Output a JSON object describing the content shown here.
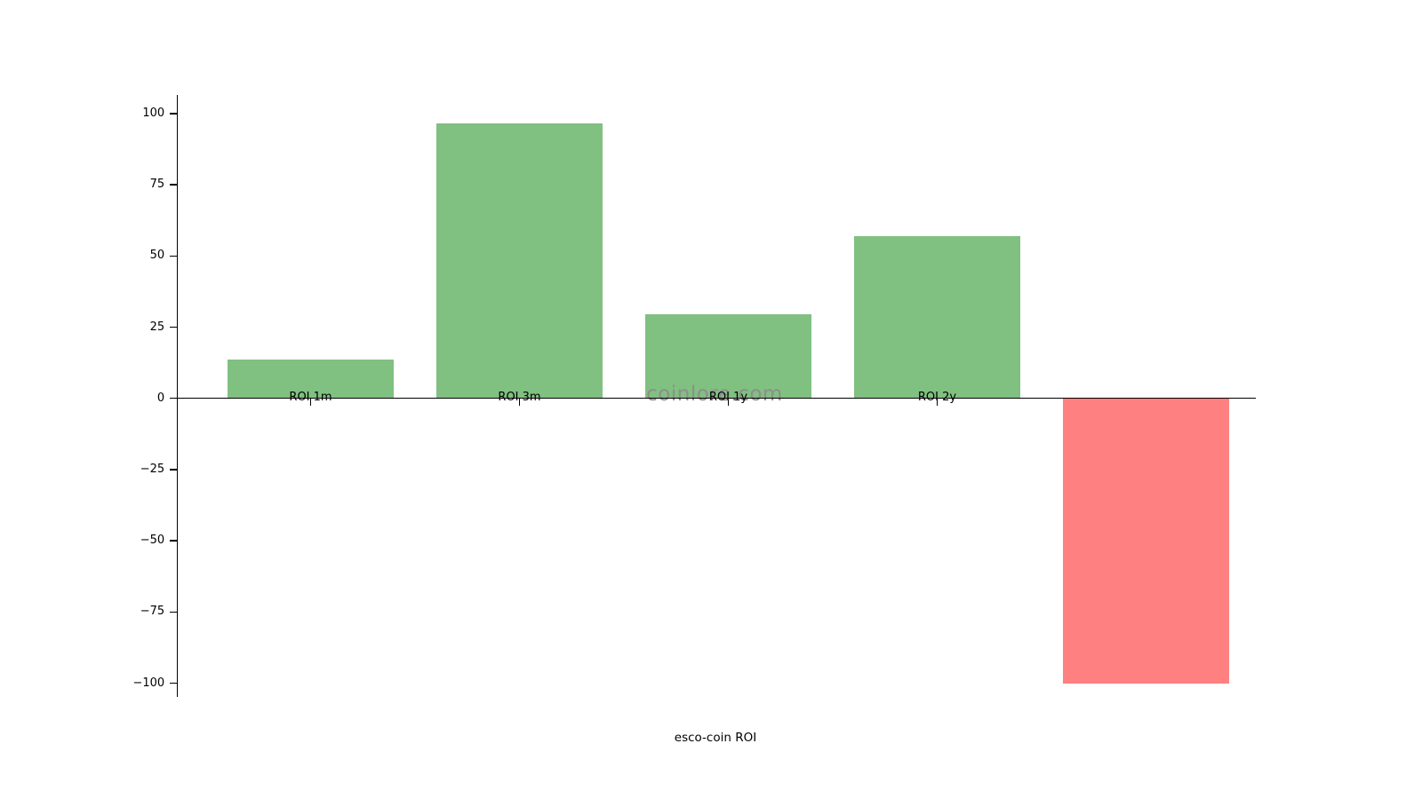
{
  "page": {
    "background": "#ffffff",
    "axis_color": "#000000"
  },
  "watermark": {
    "text": "coinlore.com",
    "color": "#8e8e8e"
  },
  "chart_data": {
    "type": "bar",
    "title": "",
    "xlabel": "esco-coin ROI",
    "ylabel": "",
    "categories": [
      "ROI 1m",
      "ROI 3m",
      "ROI 1y",
      "ROI 2y",
      ""
    ],
    "values": [
      13.7,
      96.6,
      29.6,
      57.1,
      -100
    ],
    "bar_colors": [
      "#80c080",
      "#80c080",
      "#80c080",
      "#80c080",
      "#ff8080"
    ],
    "positive_color": "#80c080",
    "negative_color": "#ff8080",
    "yticks": [
      100,
      75,
      50,
      25,
      0,
      -25,
      -50,
      -75,
      -100
    ],
    "ytick_labels": [
      "100",
      "75",
      "50",
      "25",
      "0",
      "−25",
      "−50",
      "−75",
      "−100"
    ],
    "ylim": [
      -104.8,
      106.5
    ],
    "grid": false,
    "legend": null
  }
}
